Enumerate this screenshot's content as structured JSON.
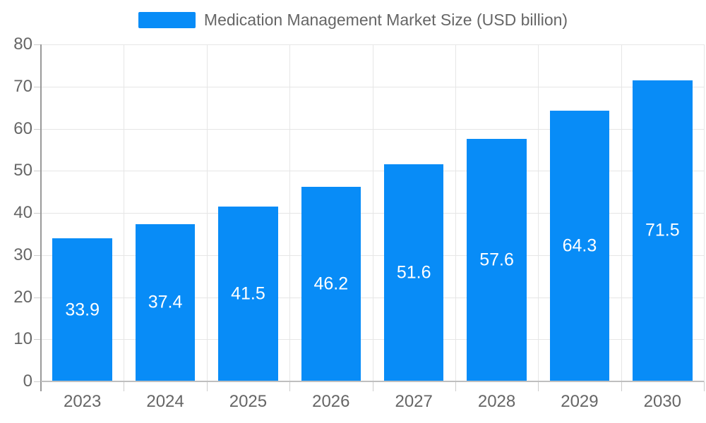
{
  "chart_data": {
    "type": "bar",
    "title": "",
    "legend_label": "Medication Management Market Size (USD billion)",
    "legend_position": "top",
    "categories": [
      "2023",
      "2024",
      "2025",
      "2026",
      "2027",
      "2028",
      "2029",
      "2030"
    ],
    "values": [
      33.9,
      37.4,
      41.5,
      46.2,
      51.6,
      57.6,
      64.3,
      71.5
    ],
    "value_labels": [
      "33.9",
      "37.4",
      "41.5",
      "46.2",
      "51.6",
      "57.6",
      "64.3",
      "71.5"
    ],
    "ylim": [
      0,
      80
    ],
    "yticks": [
      0,
      10,
      20,
      30,
      40,
      50,
      60,
      70,
      80
    ],
    "grid": true,
    "grid_vertical": true
  },
  "colors": {
    "bar": "#088cf7",
    "gridline": "#e6e6e6",
    "y_axis_line": "#999999",
    "x_axis_line": "#bfbfbf",
    "tick": "#cccccc",
    "axis_text": "#666666",
    "legend_text": "#666666",
    "value_text": "#ffffff",
    "background": "#ffffff"
  }
}
